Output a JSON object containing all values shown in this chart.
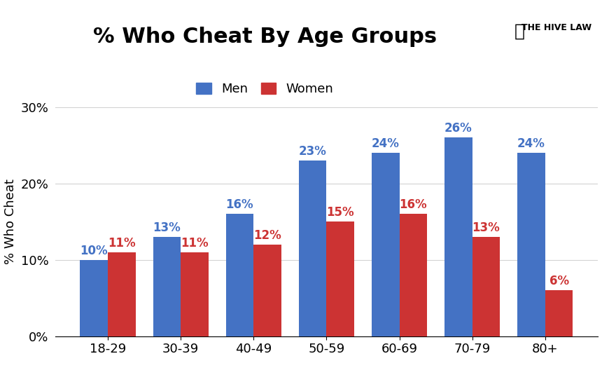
{
  "title": "% Who Cheat By Age Groups",
  "ylabel": "% Who Cheat",
  "categories": [
    "18-29",
    "30-39",
    "40-49",
    "50-59",
    "60-69",
    "70-79",
    "80+"
  ],
  "men_values": [
    10,
    13,
    16,
    23,
    24,
    26,
    24
  ],
  "women_values": [
    11,
    11,
    12,
    15,
    16,
    13,
    6
  ],
  "men_color": "#4472C4",
  "women_color": "#CC3333",
  "background_color": "#FFFFFF",
  "ylim": [
    0,
    30
  ],
  "yticks": [
    0,
    10,
    20,
    30
  ],
  "ytick_labels": [
    "0%",
    "10%",
    "20%",
    "30%"
  ],
  "bar_width": 0.38,
  "title_fontsize": 22,
  "label_fontsize": 13,
  "tick_fontsize": 13,
  "legend_fontsize": 13,
  "annot_fontsize": 12,
  "hive_law_text": "THE HIVE LAW"
}
